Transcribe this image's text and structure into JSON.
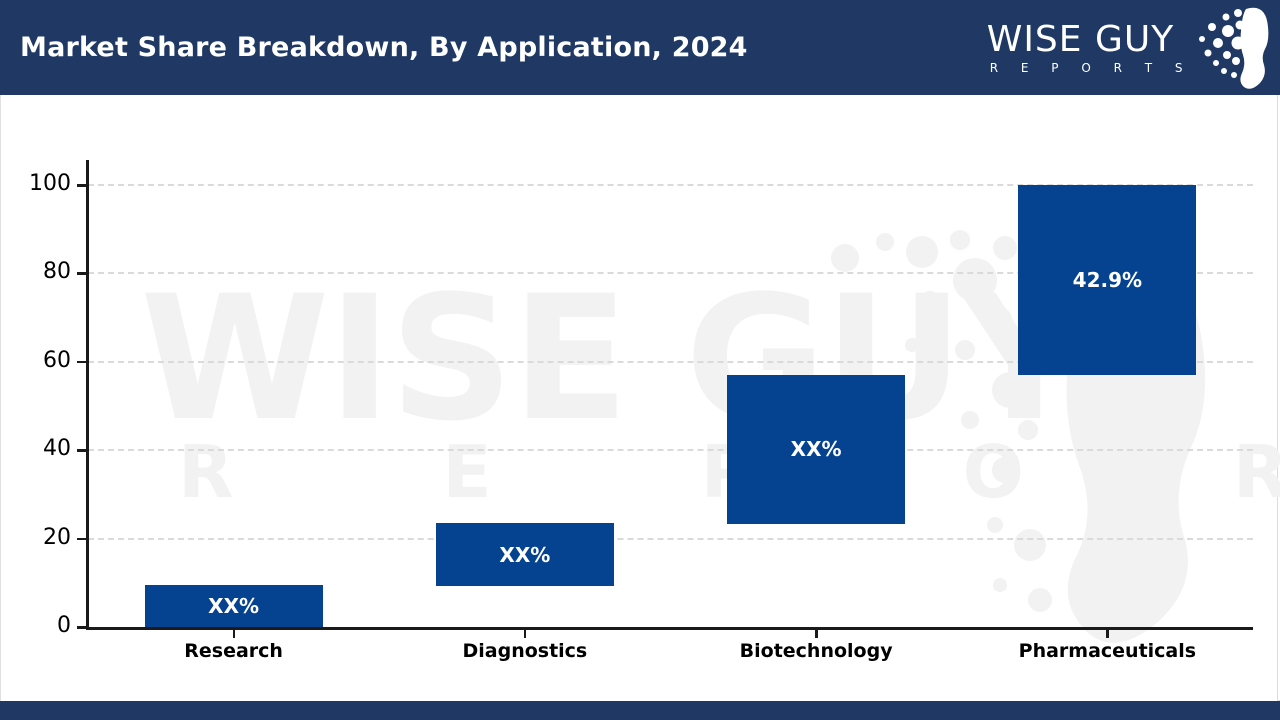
{
  "header": {
    "title": "Market Share Breakdown, By Application, 2024",
    "bg_color": "#1f3864",
    "text_color": "#ffffff"
  },
  "logo": {
    "brand_line1": "WISE GUY",
    "brand_line2": "R E P O R T S"
  },
  "watermark": {
    "line1": "WISE GUY",
    "line2": "R E P O R T S",
    "color": "#f2f2f2"
  },
  "footer": {
    "bg_color": "#1f3864"
  },
  "chart_data": {
    "type": "bar",
    "subtype": "waterfall",
    "title": "Market Share Breakdown, By Application, 2024",
    "categories": [
      "Research",
      "Diagnostics",
      "Biotechnology",
      "Pharmaceuticals"
    ],
    "segments": [
      {
        "category": "Research",
        "from": 0,
        "to": 9.5,
        "value": 9.5,
        "label": "XX%"
      },
      {
        "category": "Diagnostics",
        "from": 9.3,
        "to": 23.5,
        "value": 14.2,
        "label": "XX%"
      },
      {
        "category": "Biotechnology",
        "from": 23.3,
        "to": 57.1,
        "value": 33.8,
        "label": "XX%"
      },
      {
        "category": "Pharmaceuticals",
        "from": 57.1,
        "to": 100,
        "value": 42.9,
        "label": "42.9%"
      }
    ],
    "ylim": [
      0,
      100
    ],
    "yticks": [
      0,
      20,
      40,
      60,
      80,
      100
    ],
    "grid": "horizontal dashed",
    "gridline_color": "#dadada",
    "bar_color": "#05428f",
    "axis_color": "#1a1a1a",
    "legend": null
  }
}
